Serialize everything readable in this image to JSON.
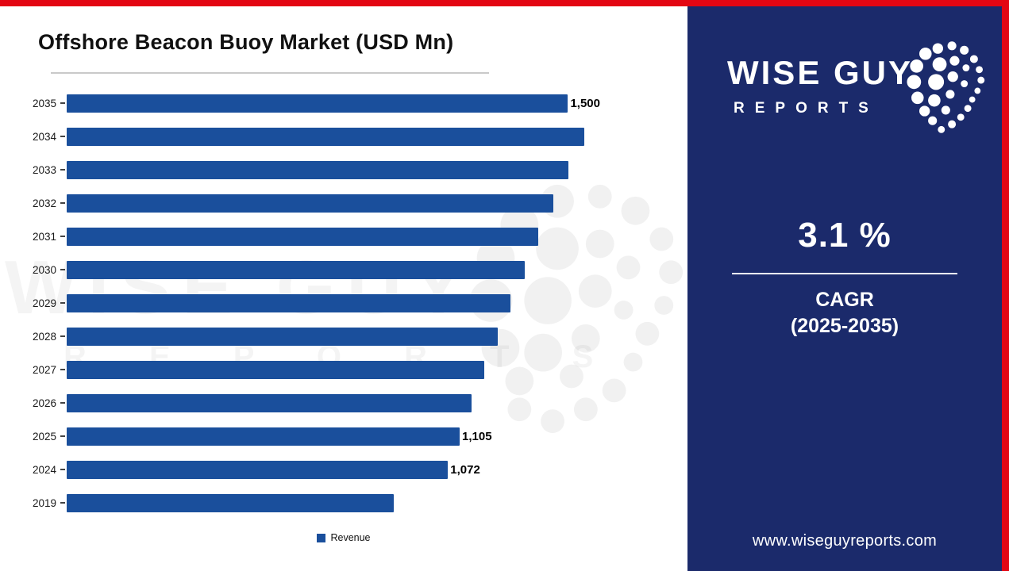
{
  "chart_data": {
    "type": "bar",
    "orientation": "horizontal",
    "title": "Offshore Beacon Buoy Market (USD Mn)",
    "categories": [
      "2035",
      "2034",
      "2033",
      "2032",
      "2031",
      "2030",
      "2029",
      "2028",
      "2027",
      "2026",
      "2025",
      "2024",
      "2019"
    ],
    "values": [
      1500,
      1455,
      1410,
      1368,
      1327,
      1287,
      1248,
      1211,
      1174,
      1139,
      1105,
      1072,
      920
    ],
    "bar_labels": [
      "1,500",
      "",
      "",
      "",
      "",
      "",
      "",
      "",
      "",
      "",
      "1,105",
      "1,072",
      ""
    ],
    "xlim": [
      0,
      1500
    ],
    "xlabel": "",
    "ylabel": "",
    "grid": false,
    "legend": [
      "Revenue"
    ],
    "legend_position": "bottom-center",
    "bar_color": "#1a4f9c",
    "legend_color": "#1a4f9c"
  },
  "watermark": {
    "line1": "WISE GUY",
    "line2": "R E P O R T S"
  },
  "panel": {
    "logo_line1": "WISE GUY",
    "logo_line2": "REPORTS",
    "cagr_value": "3.1 %",
    "cagr_label": "CAGR",
    "cagr_period": "(2025-2035)",
    "website": "www.wiseguyreports.com",
    "bg_color": "#1b2a6b",
    "accent_color": "#e30613"
  }
}
